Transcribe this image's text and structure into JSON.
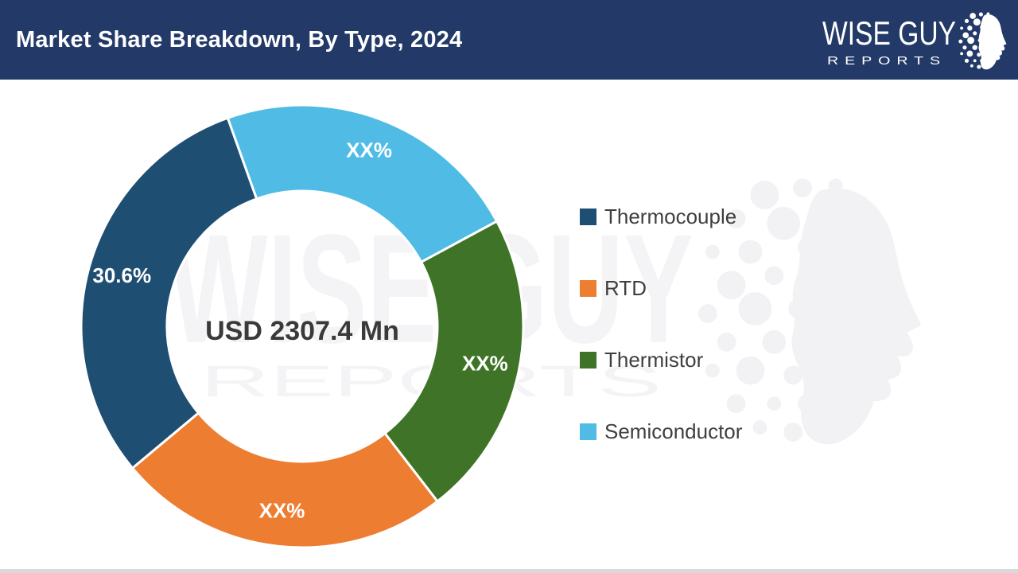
{
  "header": {
    "title": "Market Share Breakdown, By Type, 2024",
    "logo": {
      "line1": "WISE GUY",
      "line2": "REPORTS"
    }
  },
  "watermark": {
    "line1": "WISE GUY",
    "line2": "REPORTS"
  },
  "chart_data": {
    "type": "pie",
    "subtype": "donut",
    "title": "Market Share Breakdown, By Type, 2024",
    "center_label": "USD 2307.4 Mn",
    "legend_position": "right",
    "start_angle_deg": -19.7,
    "clockwise_order": [
      "Semiconductor",
      "Thermistor",
      "RTD",
      "Thermocouple"
    ],
    "segments": [
      {
        "label": "Thermocouple",
        "value_pct": 30.6,
        "display_label": "30.6%",
        "color": "#1F4E73"
      },
      {
        "label": "RTD",
        "value_pct": 24.4,
        "display_label": "XX%",
        "color": "#ED7D31"
      },
      {
        "label": "Thermistor",
        "value_pct": 22.4,
        "display_label": "XX%",
        "color": "#3F7428"
      },
      {
        "label": "Semiconductor",
        "value_pct": 22.6,
        "display_label": "XX%",
        "color": "#50BCE5"
      }
    ],
    "colors": {
      "slice_label_text": "#FFFFFF",
      "center_label_text": "#3A3A3A",
      "separator": "#FFFFFF"
    }
  }
}
